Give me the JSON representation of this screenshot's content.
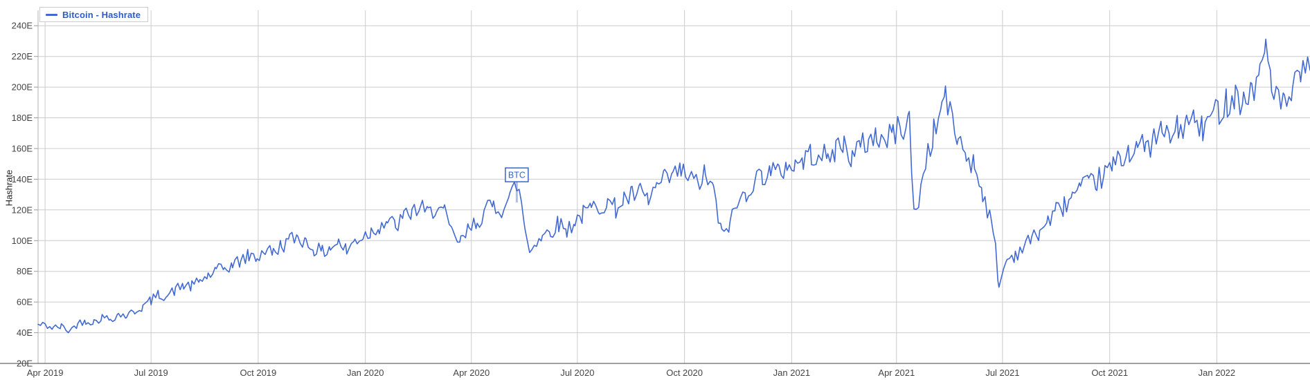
{
  "chart_data": {
    "type": "line",
    "legend": "Bitcoin - Hashrate",
    "ylabel": "Hashrate",
    "unit": "E",
    "grid": true,
    "legend_position": "top-left",
    "ylim": [
      20,
      250
    ],
    "x_range": [
      "2019-03-26",
      "2022-03-22"
    ],
    "y_ticks": [
      {
        "label": "20E",
        "value": 20
      },
      {
        "label": "40E",
        "value": 40
      },
      {
        "label": "60E",
        "value": 60
      },
      {
        "label": "80E",
        "value": 80
      },
      {
        "label": "100E",
        "value": 100
      },
      {
        "label": "120E",
        "value": 120
      },
      {
        "label": "140E",
        "value": 140
      },
      {
        "label": "160E",
        "value": 160
      },
      {
        "label": "180E",
        "value": 180
      },
      {
        "label": "200E",
        "value": 200
      },
      {
        "label": "220E",
        "value": 220
      },
      {
        "label": "240E",
        "value": 240
      }
    ],
    "x_ticks": [
      {
        "label": "Apr 2019",
        "date": "2019-04-01"
      },
      {
        "label": "Jul 2019",
        "date": "2019-07-01"
      },
      {
        "label": "Oct 2019",
        "date": "2019-10-01"
      },
      {
        "label": "Jan 2020",
        "date": "2020-01-01"
      },
      {
        "label": "Apr 2020",
        "date": "2020-04-01"
      },
      {
        "label": "Jul 2020",
        "date": "2020-07-01"
      },
      {
        "label": "Oct 2020",
        "date": "2020-10-01"
      },
      {
        "label": "Jan 2021",
        "date": "2021-01-01"
      },
      {
        "label": "Apr 2021",
        "date": "2021-04-01"
      },
      {
        "label": "Jul 2021",
        "date": "2021-07-01"
      },
      {
        "label": "Oct 2021",
        "date": "2021-10-01"
      },
      {
        "label": "Jan 2022",
        "date": "2022-01-01"
      }
    ],
    "annotation": {
      "label": "BTC",
      "date": "2020-05-10",
      "value": 137
    },
    "series": [
      {
        "name": "Bitcoin - Hashrate",
        "color": "#4169d1",
        "anchors": [
          [
            "2019-03-26",
            45
          ],
          [
            "2019-04-01",
            45
          ],
          [
            "2019-04-08",
            43
          ],
          [
            "2019-04-15",
            44
          ],
          [
            "2019-04-22",
            41
          ],
          [
            "2019-04-29",
            46
          ],
          [
            "2019-05-06",
            48
          ],
          [
            "2019-05-13",
            47
          ],
          [
            "2019-05-20",
            50
          ],
          [
            "2019-05-27",
            49
          ],
          [
            "2019-06-03",
            52
          ],
          [
            "2019-06-10",
            51
          ],
          [
            "2019-06-17",
            54
          ],
          [
            "2019-06-24",
            57
          ],
          [
            "2019-07-01",
            61
          ],
          [
            "2019-07-08",
            65
          ],
          [
            "2019-07-15",
            64
          ],
          [
            "2019-07-22",
            68
          ],
          [
            "2019-07-29",
            71
          ],
          [
            "2019-08-05",
            70
          ],
          [
            "2019-08-12",
            74
          ],
          [
            "2019-08-19",
            77
          ],
          [
            "2019-08-26",
            80
          ],
          [
            "2019-09-02",
            82
          ],
          [
            "2019-09-09",
            84
          ],
          [
            "2019-09-16",
            87
          ],
          [
            "2019-09-23",
            90
          ],
          [
            "2019-09-30",
            89
          ],
          [
            "2019-10-07",
            94
          ],
          [
            "2019-10-14",
            92
          ],
          [
            "2019-10-21",
            97
          ],
          [
            "2019-10-28",
            100
          ],
          [
            "2019-11-04",
            103
          ],
          [
            "2019-11-11",
            99
          ],
          [
            "2019-11-18",
            95
          ],
          [
            "2019-11-25",
            92
          ],
          [
            "2019-12-02",
            96
          ],
          [
            "2019-12-09",
            99
          ],
          [
            "2019-12-16",
            93
          ],
          [
            "2019-12-23",
            100
          ],
          [
            "2019-12-30",
            103
          ],
          [
            "2020-01-06",
            106
          ],
          [
            "2020-01-13",
            110
          ],
          [
            "2020-01-20",
            113
          ],
          [
            "2020-01-27",
            109
          ],
          [
            "2020-02-03",
            115
          ],
          [
            "2020-02-10",
            119
          ],
          [
            "2020-02-17",
            121
          ],
          [
            "2020-02-24",
            117
          ],
          [
            "2020-03-02",
            123
          ],
          [
            "2020-03-09",
            117
          ],
          [
            "2020-03-16",
            103
          ],
          [
            "2020-03-23",
            99
          ],
          [
            "2020-03-30",
            107
          ],
          [
            "2020-04-06",
            113
          ],
          [
            "2020-04-13",
            119
          ],
          [
            "2020-04-20",
            123
          ],
          [
            "2020-04-27",
            121
          ],
          [
            "2020-05-04",
            128
          ],
          [
            "2020-05-10",
            137
          ],
          [
            "2020-05-14",
            125
          ],
          [
            "2020-05-17",
            108
          ],
          [
            "2020-05-21",
            93
          ],
          [
            "2020-05-25",
            99
          ],
          [
            "2020-06-01",
            103
          ],
          [
            "2020-06-08",
            107
          ],
          [
            "2020-06-15",
            111
          ],
          [
            "2020-06-22",
            107
          ],
          [
            "2020-06-29",
            113
          ],
          [
            "2020-07-06",
            117
          ],
          [
            "2020-07-13",
            121
          ],
          [
            "2020-07-20",
            123
          ],
          [
            "2020-07-27",
            125
          ],
          [
            "2020-08-03",
            121
          ],
          [
            "2020-08-10",
            127
          ],
          [
            "2020-08-17",
            129
          ],
          [
            "2020-08-24",
            131
          ],
          [
            "2020-08-31",
            126
          ],
          [
            "2020-09-07",
            135
          ],
          [
            "2020-09-14",
            139
          ],
          [
            "2020-09-21",
            142
          ],
          [
            "2020-09-28",
            145
          ],
          [
            "2020-10-05",
            141
          ],
          [
            "2020-10-12",
            137
          ],
          [
            "2020-10-19",
            143
          ],
          [
            "2020-10-26",
            132
          ],
          [
            "2020-11-02",
            103
          ],
          [
            "2020-11-09",
            112
          ],
          [
            "2020-11-16",
            124
          ],
          [
            "2020-11-23",
            132
          ],
          [
            "2020-11-30",
            139
          ],
          [
            "2020-12-07",
            143
          ],
          [
            "2020-12-14",
            146
          ],
          [
            "2020-12-21",
            143
          ],
          [
            "2020-12-28",
            150
          ],
          [
            "2021-01-04",
            149
          ],
          [
            "2021-01-11",
            153
          ],
          [
            "2021-01-18",
            156
          ],
          [
            "2021-01-25",
            159
          ],
          [
            "2021-02-01",
            151
          ],
          [
            "2021-02-08",
            161
          ],
          [
            "2021-02-15",
            163
          ],
          [
            "2021-02-22",
            154
          ],
          [
            "2021-03-01",
            161
          ],
          [
            "2021-03-08",
            165
          ],
          [
            "2021-03-15",
            169
          ],
          [
            "2021-03-22",
            164
          ],
          [
            "2021-03-29",
            171
          ],
          [
            "2021-04-05",
            173
          ],
          [
            "2021-04-12",
            179
          ],
          [
            "2021-04-16",
            116
          ],
          [
            "2021-04-20",
            126
          ],
          [
            "2021-04-26",
            152
          ],
          [
            "2021-05-03",
            170
          ],
          [
            "2021-05-10",
            188
          ],
          [
            "2021-05-13",
            197
          ],
          [
            "2021-05-17",
            181
          ],
          [
            "2021-05-24",
            166
          ],
          [
            "2021-05-31",
            156
          ],
          [
            "2021-06-07",
            149
          ],
          [
            "2021-06-14",
            132
          ],
          [
            "2021-06-21",
            112
          ],
          [
            "2021-06-25",
            95
          ],
          [
            "2021-06-28",
            69
          ],
          [
            "2021-07-02",
            82
          ],
          [
            "2021-07-05",
            88
          ],
          [
            "2021-07-12",
            91
          ],
          [
            "2021-07-19",
            96
          ],
          [
            "2021-07-26",
            101
          ],
          [
            "2021-08-02",
            106
          ],
          [
            "2021-08-09",
            113
          ],
          [
            "2021-08-16",
            119
          ],
          [
            "2021-08-23",
            123
          ],
          [
            "2021-08-30",
            129
          ],
          [
            "2021-09-06",
            133
          ],
          [
            "2021-09-13",
            136
          ],
          [
            "2021-09-20",
            139
          ],
          [
            "2021-09-27",
            143
          ],
          [
            "2021-10-04",
            149
          ],
          [
            "2021-10-11",
            153
          ],
          [
            "2021-10-18",
            159
          ],
          [
            "2021-10-25",
            163
          ],
          [
            "2021-11-01",
            159
          ],
          [
            "2021-11-08",
            166
          ],
          [
            "2021-11-15",
            171
          ],
          [
            "2021-11-22",
            167
          ],
          [
            "2021-11-29",
            173
          ],
          [
            "2021-12-06",
            176
          ],
          [
            "2021-12-13",
            179
          ],
          [
            "2021-12-20",
            171
          ],
          [
            "2021-12-27",
            181
          ],
          [
            "2022-01-03",
            186
          ],
          [
            "2022-01-10",
            191
          ],
          [
            "2022-01-17",
            196
          ],
          [
            "2022-01-24",
            190
          ],
          [
            "2022-01-31",
            199
          ],
          [
            "2022-02-07",
            207
          ],
          [
            "2022-02-12",
            229
          ],
          [
            "2022-02-17",
            204
          ],
          [
            "2022-02-21",
            196
          ],
          [
            "2022-02-28",
            186
          ],
          [
            "2022-03-07",
            196
          ],
          [
            "2022-03-14",
            207
          ],
          [
            "2022-03-22",
            211
          ]
        ]
      }
    ],
    "noise": {
      "seed": 42,
      "amplitude": 0.055,
      "step_days": 2
    }
  },
  "colors": {
    "line": "#4169d1",
    "legend_text": "#2e5bc7",
    "annotation": "#3566cc",
    "annotation_stem": "rgba(77,110,210,0.45)",
    "gridline": "#cccccc",
    "axis_left": "#b0b0b0",
    "axis_bottom": "#424242",
    "tick_text": "#444444",
    "tick_mark": "#999999"
  }
}
